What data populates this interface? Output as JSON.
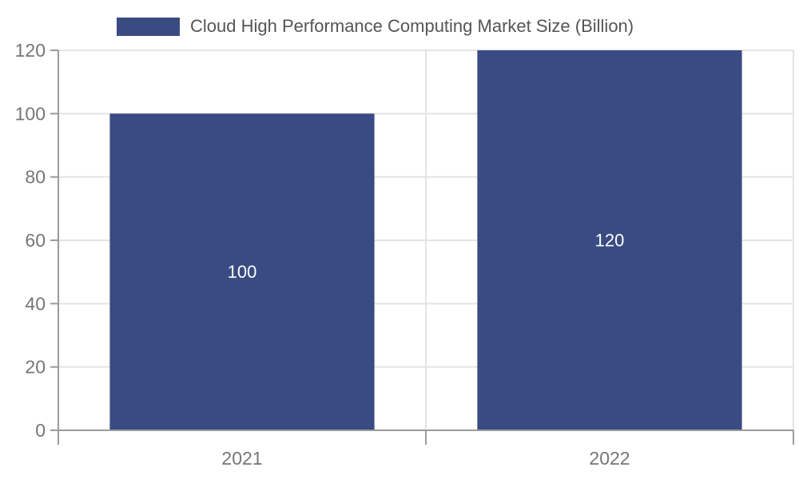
{
  "legend": {
    "label": "Cloud High Performance Computing Market Size (Billion)"
  },
  "chart_data": {
    "type": "bar",
    "title": "Cloud High Performance Computing Market Size (Billion)",
    "categories": [
      "2021",
      "2022"
    ],
    "values": [
      100,
      120
    ],
    "value_labels": [
      "100",
      "120"
    ],
    "yticks": [
      0,
      20,
      40,
      60,
      80,
      100,
      120
    ],
    "ylim": [
      0,
      120
    ],
    "xlabel": "",
    "ylabel": "",
    "grid": true,
    "legend_position": "top-center",
    "label_position": "inside-center"
  },
  "colors": {
    "bar": "#394B82",
    "grid_line": "#E3E3E8",
    "axis_line": "#9B9B9B",
    "tick_label": "#757575",
    "legend_text": "#555555",
    "value_label": "#FFFFFF",
    "background": "#FFFFFF"
  }
}
